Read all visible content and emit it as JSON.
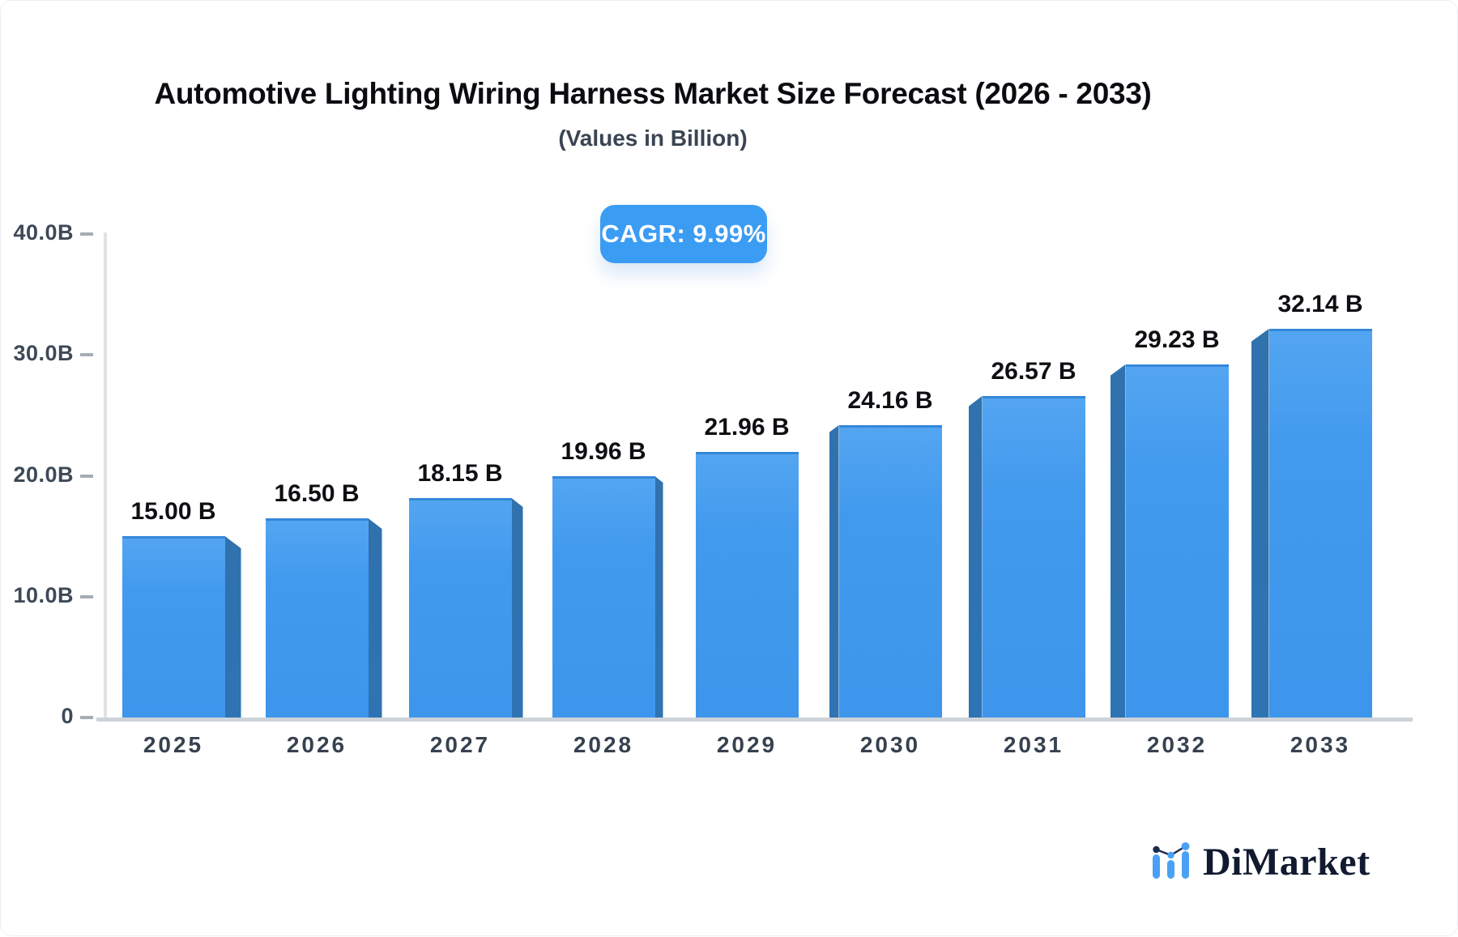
{
  "header": {
    "title": "Automotive Lighting Wiring Harness Market Size Forecast (2026 - 2033)",
    "subtitle": "(Values in Billion)"
  },
  "badge": {
    "label": "CAGR: 9.99%"
  },
  "logo": {
    "brand": "DiMarket",
    "icon": "mini-bar-chart-icon"
  },
  "colors": {
    "bar_face": "#3F97EC",
    "bar_face_light": "#53A5F1",
    "bar_side": "#2E72B2",
    "bar_top_edge": "#3487DA",
    "badge_bg": "#3B9CF4",
    "axis_line": "#CED3D9",
    "tick": "#A6ADB5",
    "value_label": "#0D0F13",
    "axis_label": "#37414F",
    "brand_navy": "#111A30"
  },
  "chart_data": {
    "type": "bar",
    "title": "Automotive Lighting Wiring Harness Market Size Forecast (2026 - 2033)",
    "subtitle": "(Values in Billion)",
    "annotation": "CAGR: 9.99%",
    "categories": [
      "2025",
      "2026",
      "2027",
      "2028",
      "2029",
      "2030",
      "2031",
      "2032",
      "2033"
    ],
    "values": [
      15.0,
      16.5,
      18.15,
      19.96,
      21.96,
      24.16,
      26.57,
      29.23,
      32.14
    ],
    "value_labels": [
      "15.00 B",
      "16.50 B",
      "18.15 B",
      "19.96 B",
      "21.96 B",
      "24.16 B",
      "26.57 B",
      "29.23 B",
      "32.14 B"
    ],
    "xlabel": "",
    "ylabel": "",
    "ylim": [
      0,
      40
    ],
    "yticks": [
      {
        "label": "40.0B",
        "value": 40
      },
      {
        "label": "30.0B",
        "value": 30
      },
      {
        "label": "20.0B",
        "value": 20
      },
      {
        "label": "10.0B",
        "value": 10
      },
      {
        "label": "0",
        "value": 0
      }
    ],
    "grid": false,
    "legend": false,
    "style": "3d-perspective-bars, dark side faces center (2029 viewed head-on)"
  }
}
